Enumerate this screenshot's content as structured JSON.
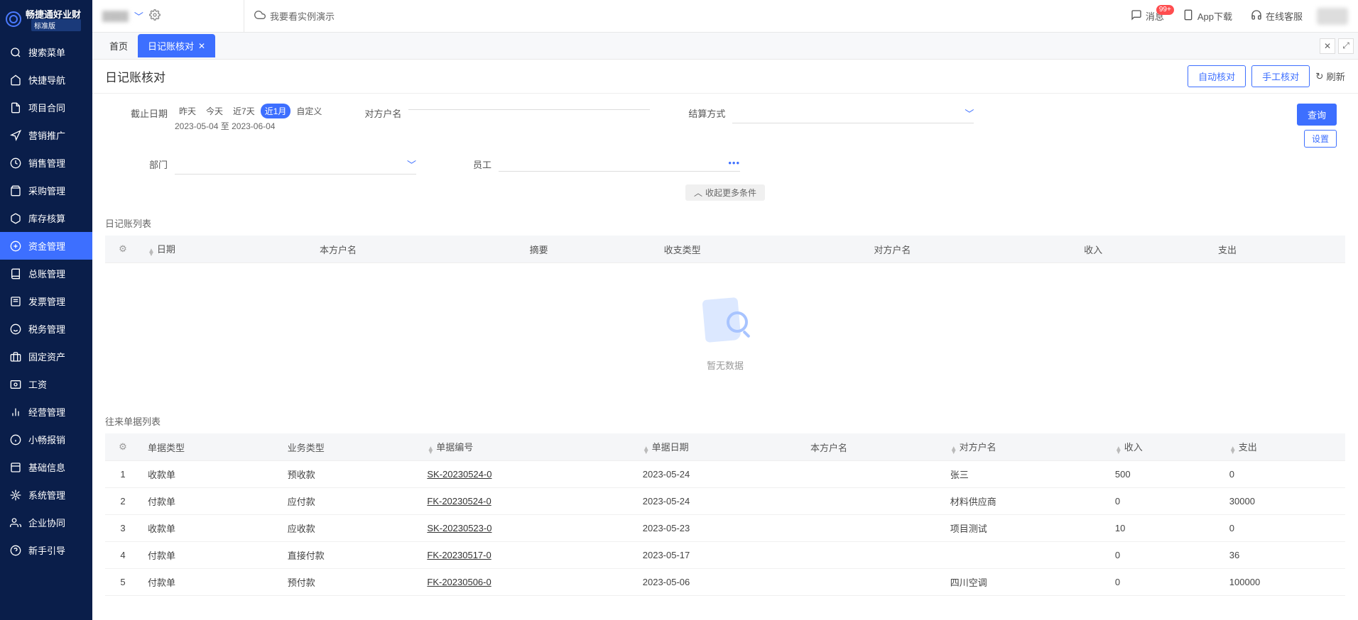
{
  "brand": {
    "name": "畅捷通好业财",
    "edition": "标准版"
  },
  "sidebar": {
    "items": [
      {
        "icon": "search",
        "label": "搜索菜单"
      },
      {
        "icon": "home",
        "label": "快捷导航"
      },
      {
        "icon": "contract",
        "label": "项目合同"
      },
      {
        "icon": "promo",
        "label": "营销推广"
      },
      {
        "icon": "sales",
        "label": "销售管理"
      },
      {
        "icon": "purchase",
        "label": "采购管理"
      },
      {
        "icon": "stock",
        "label": "库存核算"
      },
      {
        "icon": "fund",
        "label": "资金管理"
      },
      {
        "icon": "ledger",
        "label": "总账管理"
      },
      {
        "icon": "invoice",
        "label": "发票管理"
      },
      {
        "icon": "tax",
        "label": "税务管理"
      },
      {
        "icon": "asset",
        "label": "固定资产"
      },
      {
        "icon": "salary",
        "label": "工资"
      },
      {
        "icon": "biz",
        "label": "经营管理"
      },
      {
        "icon": "report",
        "label": "小畅报销"
      },
      {
        "icon": "base",
        "label": "基础信息"
      },
      {
        "icon": "sys",
        "label": "系统管理"
      },
      {
        "icon": "corp",
        "label": "企业协同"
      },
      {
        "icon": "guide",
        "label": "新手引导"
      }
    ],
    "active_index": 7
  },
  "topbar": {
    "company": "████",
    "demo_link": "我要看实例演示",
    "actions": {
      "message": "消息",
      "message_badge": "99+",
      "app": "App下载",
      "service": "在线客服"
    }
  },
  "tabs": {
    "items": [
      {
        "label": "首页",
        "closable": false
      },
      {
        "label": "日记账核对",
        "closable": true
      }
    ],
    "active_index": 1
  },
  "page": {
    "title": "日记账核对",
    "btn_auto": "自动核对",
    "btn_manual": "手工核对",
    "btn_refresh": "刷新"
  },
  "filters": {
    "deadline_label": "截止日期",
    "presets": [
      "昨天",
      "今天",
      "近7天",
      "近1月",
      "自定义"
    ],
    "preset_active": 3,
    "date_from": "2023-05-04",
    "date_to": "2023-06-04",
    "date_sep": "至",
    "counterparty_label": "对方户名",
    "settle_label": "结算方式",
    "dept_label": "部门",
    "employee_label": "员工",
    "btn_query": "查询",
    "btn_setting": "设置",
    "collapse": "收起更多条件"
  },
  "journal": {
    "title": "日记账列表",
    "columns": [
      "日期",
      "本方户名",
      "摘要",
      "收支类型",
      "对方户名",
      "收入",
      "支出"
    ],
    "empty_text": "暂无数据"
  },
  "bills": {
    "title": "往来单据列表",
    "columns": [
      "单据类型",
      "业务类型",
      "单据编号",
      "单据日期",
      "本方户名",
      "对方户名",
      "收入",
      "支出"
    ],
    "rows": [
      {
        "n": "1",
        "doc_type": "收款单",
        "biz_type": "预收款",
        "no": "SK-20230524-0",
        "date": "2023-05-24",
        "our": "",
        "their": "张三",
        "in": "500",
        "out": "0"
      },
      {
        "n": "2",
        "doc_type": "付款单",
        "biz_type": "应付款",
        "no": "FK-20230524-0",
        "date": "2023-05-24",
        "our": "",
        "their": "材料供应商",
        "in": "0",
        "out": "30000"
      },
      {
        "n": "3",
        "doc_type": "收款单",
        "biz_type": "应收款",
        "no": "SK-20230523-0",
        "date": "2023-05-23",
        "our": "",
        "their": "项目测试",
        "in": "10",
        "out": "0"
      },
      {
        "n": "4",
        "doc_type": "付款单",
        "biz_type": "直接付款",
        "no": "FK-20230517-0",
        "date": "2023-05-17",
        "our": "",
        "their": "",
        "in": "0",
        "out": "36"
      },
      {
        "n": "5",
        "doc_type": "付款单",
        "biz_type": "预付款",
        "no": "FK-20230506-0",
        "date": "2023-05-06",
        "our": "",
        "their": "四川空调",
        "in": "0",
        "out": "100000"
      }
    ]
  },
  "colors": {
    "primary": "#3d6fff",
    "sidebar_bg": "#0a1e4a",
    "danger": "#ff4d4f"
  }
}
